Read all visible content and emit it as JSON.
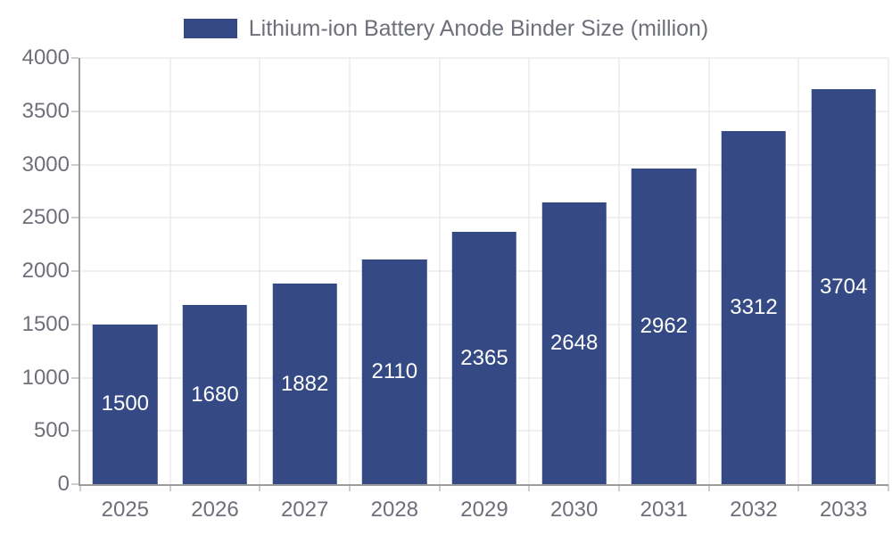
{
  "chart_data": {
    "type": "bar",
    "title": "Lithium-ion Battery Anode Binder Size (million)",
    "legend_entries": [
      "Lithium-ion Battery Anode Binder Size (million)"
    ],
    "legend_position": "top-center",
    "categories": [
      "2025",
      "2026",
      "2027",
      "2028",
      "2029",
      "2030",
      "2031",
      "2032",
      "2033"
    ],
    "values": [
      1500,
      1680,
      1882,
      2110,
      2365,
      2648,
      2962,
      3312,
      3704
    ],
    "value_labels": [
      "1500",
      "1680",
      "1882",
      "2110",
      "2365",
      "2648",
      "2962",
      "3312",
      "3704"
    ],
    "xlabel": "",
    "ylabel": "",
    "ylim": [
      0,
      4000
    ],
    "yticks": [
      0,
      500,
      1000,
      1500,
      2000,
      2500,
      3000,
      3500,
      4000
    ],
    "grid": true,
    "grid_vertical": true,
    "colors": {
      "bar": "#354a84",
      "bar_value_label": "#ffffff",
      "axis_line": "#9c9c9c",
      "gridline": "#e2e2e2",
      "tick_label": "#6e7079",
      "legend_text": "#6e7079",
      "background": "#ffffff"
    },
    "bar_width_fraction": 0.72,
    "value_label_position": "center-of-bar"
  }
}
